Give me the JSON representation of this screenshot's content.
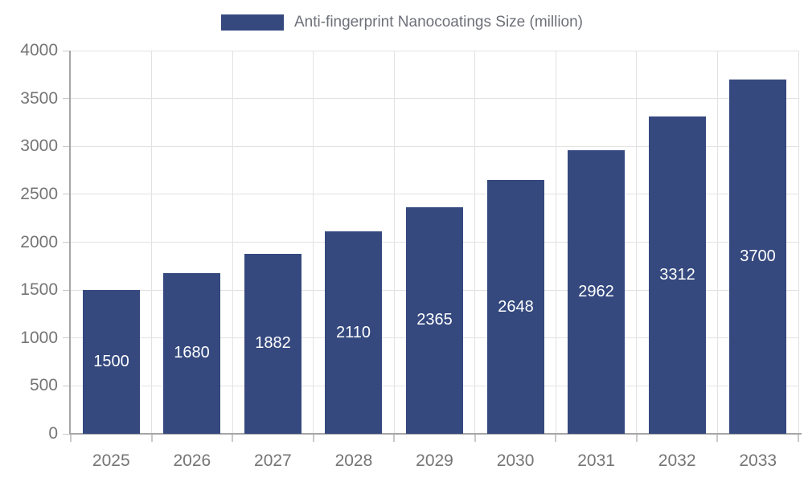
{
  "chart_data": {
    "type": "bar",
    "title": "",
    "legend": "Anti-fingerprint Nanocoatings Size (million)",
    "legend_position": "top-center",
    "categories": [
      "2025",
      "2026",
      "2027",
      "2028",
      "2029",
      "2030",
      "2031",
      "2032",
      "2033"
    ],
    "values": [
      1500,
      1680,
      1882,
      2110,
      2365,
      2648,
      2962,
      3312,
      3700
    ],
    "value_labels_shown": true,
    "xlabel": "",
    "ylabel": "",
    "ylim": [
      0,
      4000
    ],
    "ytick_step": 500,
    "ytick_labels": [
      "0",
      "500",
      "1000",
      "1500",
      "2000",
      "2500",
      "3000",
      "3500",
      "4000"
    ],
    "grid": true,
    "colors": {
      "bar": "#35497F",
      "value_label": "#FFFFFF",
      "grid_line": "#E2E2E2",
      "axis_line": "#A6A6A6",
      "tick": "#C9C9C9",
      "axis_text": "#757575",
      "legend_text": "#6E7079"
    }
  }
}
